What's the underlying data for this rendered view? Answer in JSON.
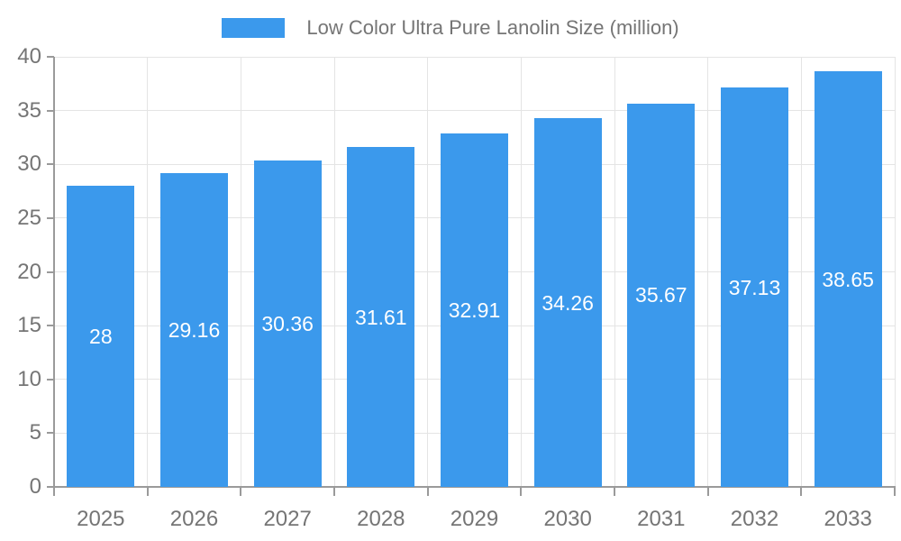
{
  "legend": {
    "label": "Low Color Ultra Pure Lanolin Size (million)"
  },
  "chart_data": {
    "type": "bar",
    "title": "",
    "xlabel": "",
    "ylabel": "",
    "categories": [
      "2025",
      "2026",
      "2027",
      "2028",
      "2029",
      "2030",
      "2031",
      "2032",
      "2033"
    ],
    "values": [
      28,
      29.16,
      30.36,
      31.61,
      32.91,
      34.26,
      35.67,
      37.13,
      38.65
    ],
    "value_labels": [
      "28",
      "29.16",
      "30.36",
      "31.61",
      "32.91",
      "34.26",
      "35.67",
      "37.13",
      "38.65"
    ],
    "series_name": "Low Color Ultra Pure Lanolin Size (million)",
    "ylim": [
      0,
      40
    ],
    "ytick_step": 5,
    "ytick_labels": [
      "0",
      "5",
      "10",
      "15",
      "20",
      "25",
      "30",
      "35",
      "40"
    ],
    "grid": true,
    "legend_position": "top-center",
    "value_label_position": "inside-center"
  },
  "colors": {
    "bar": "#3B99EC",
    "axis_label": "#757575",
    "legend_text": "#757575",
    "gridline": "#E4E4E4",
    "axis_line": "#9A9A9A",
    "value_label": "#FFFFFF",
    "background": "#FFFFFF"
  }
}
